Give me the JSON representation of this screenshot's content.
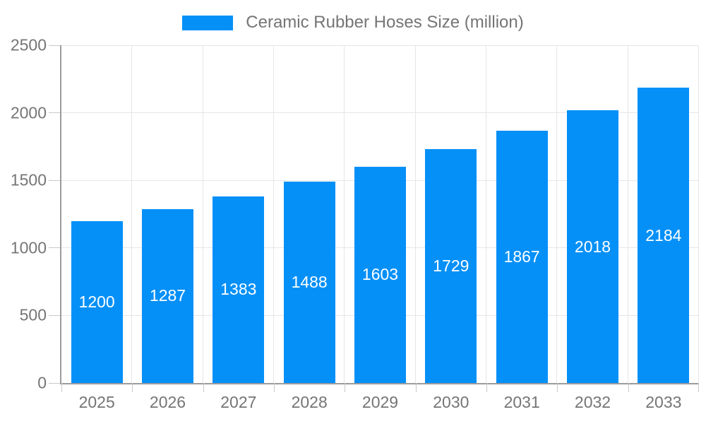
{
  "chart_data": {
    "type": "bar",
    "title": "Ceramic Rubber Hoses Size (million)",
    "legend": {
      "label": "Ceramic Rubber Hoses Size (million)",
      "position": "top"
    },
    "categories": [
      "2025",
      "2026",
      "2027",
      "2028",
      "2029",
      "2030",
      "2031",
      "2032",
      "2033"
    ],
    "series": [
      {
        "name": "Ceramic Rubber Hoses Size (million)",
        "values": [
          1200,
          1287,
          1383,
          1488,
          1603,
          1729,
          1867,
          2018,
          2184
        ]
      }
    ],
    "xlabel": "",
    "ylabel": "",
    "ylim": [
      0,
      2500
    ],
    "yticks": [
      0,
      500,
      1000,
      1500,
      2000,
      2500
    ],
    "grid": true,
    "value_labels_position": "inside-center",
    "colors": {
      "bar": "#0590f8",
      "bar_label": "#ffffff",
      "axis_line": "#9b9b9b",
      "gridline": "#e6e6e6",
      "tick": "#c9c9c9",
      "text": "#757575",
      "background": "#ffffff"
    }
  }
}
